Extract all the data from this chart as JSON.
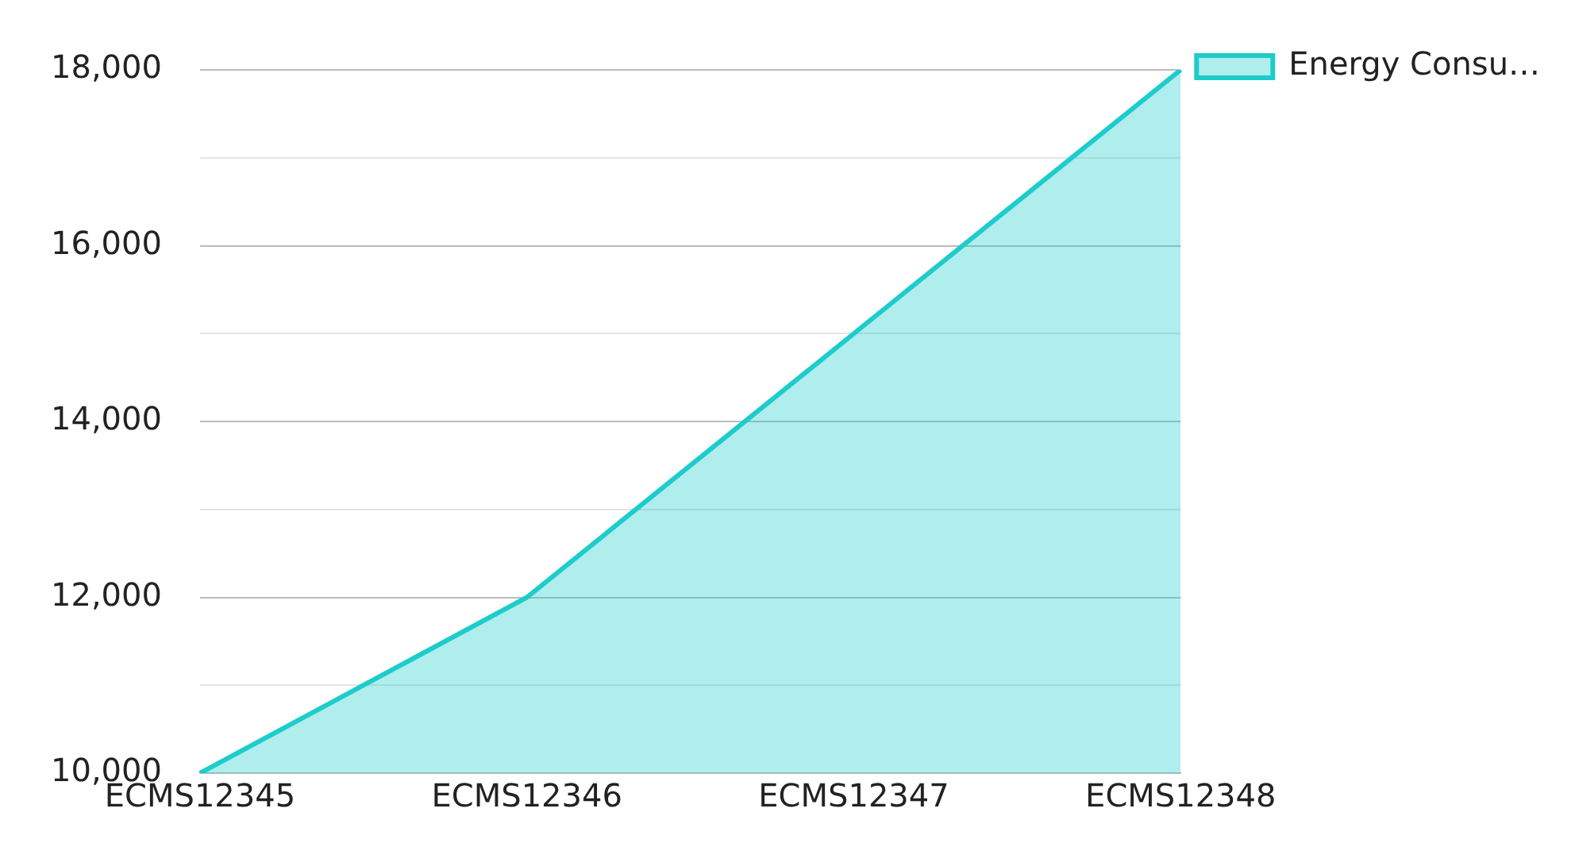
{
  "chart_data": {
    "type": "area",
    "categories": [
      "ECMS12345",
      "ECMS12346",
      "ECMS12347",
      "ECMS12348"
    ],
    "series": [
      {
        "name": "Energy Consu…",
        "color": "#1ecccc",
        "values": [
          10000,
          12000,
          15000,
          18000
        ]
      }
    ],
    "ylim": [
      10000,
      18000
    ],
    "yticks": [
      {
        "value": 10000,
        "label": "10,000"
      },
      {
        "value": 11000,
        "label": null
      },
      {
        "value": 12000,
        "label": "12,000"
      },
      {
        "value": 13000,
        "label": null
      },
      {
        "value": 14000,
        "label": "14,000"
      },
      {
        "value": 15000,
        "label": null
      },
      {
        "value": 16000,
        "label": "16,000"
      },
      {
        "value": 17000,
        "label": null
      },
      {
        "value": 18000,
        "label": "18,000"
      }
    ],
    "grid": "y",
    "legend": "top right",
    "marker": "none",
    "line_style": "solid"
  }
}
